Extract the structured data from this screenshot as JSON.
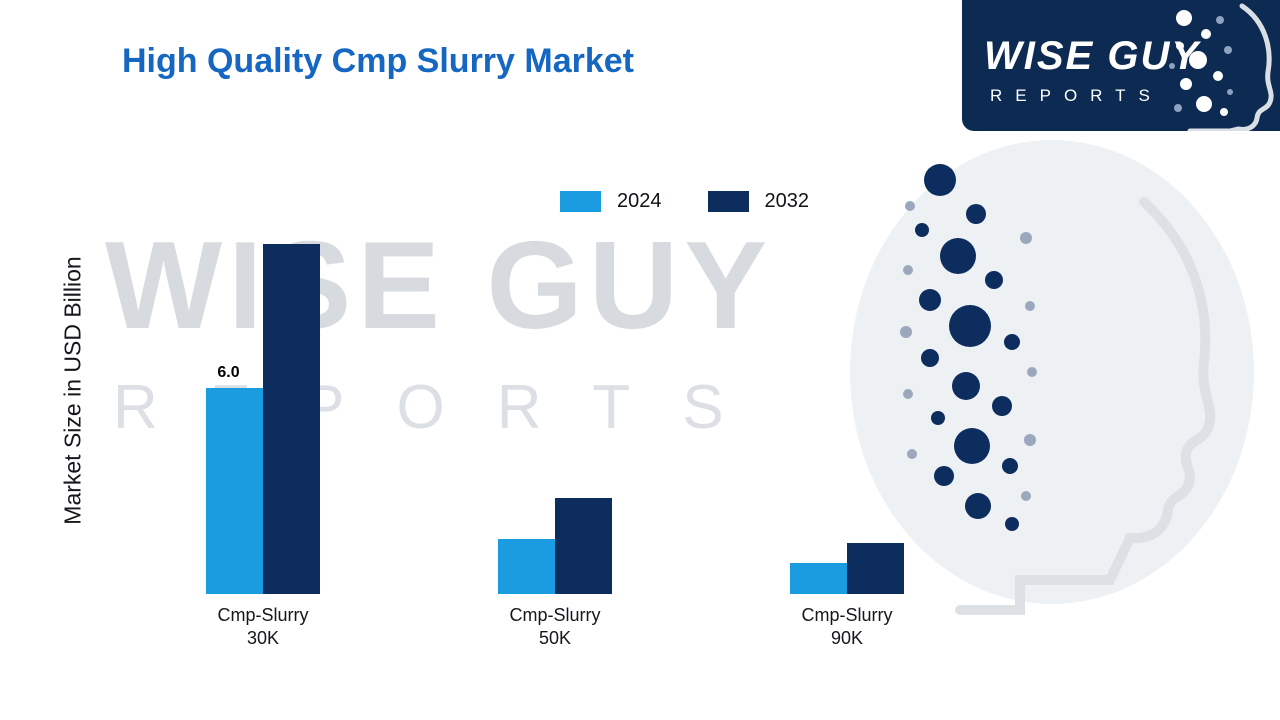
{
  "page": {
    "title": "High Quality Cmp Slurry Market"
  },
  "logo": {
    "brand_top": "WISE GUY",
    "brand_bottom": "REPORTS"
  },
  "watermark": {
    "line1": "WISE GUY",
    "line2": "REPORTS"
  },
  "colors": {
    "title_blue": "#1567c2",
    "bar_2024": "#1b9ce0",
    "bar_2032": "#0d2d5e",
    "logo_background": "#0d2b52",
    "watermark_gray": "#d7dbe0"
  },
  "chart_data": {
    "type": "bar",
    "title": "High Quality Cmp Slurry Market",
    "xlabel": "",
    "ylabel": "Market Size in USD Billion",
    "ylim": [
      0,
      10.5
    ],
    "grid": false,
    "legend_position": "top-center",
    "categories": [
      "Cmp-Slurry 30K",
      "Cmp-Slurry 50K",
      "Cmp-Slurry 90K"
    ],
    "category_label_lines": [
      [
        "Cmp-Slurry",
        "30K"
      ],
      [
        "Cmp-Slurry",
        "50K"
      ],
      [
        "Cmp-Slurry",
        "90K"
      ]
    ],
    "series": [
      {
        "name": "2024",
        "color": "#1b9ce0",
        "values": [
          6.0,
          1.6,
          0.9
        ],
        "value_labels": [
          "6.0",
          "",
          ""
        ]
      },
      {
        "name": "2032",
        "color": "#0d2d5e",
        "values": [
          10.2,
          2.8,
          1.5
        ],
        "value_labels": [
          "",
          "",
          ""
        ]
      }
    ]
  }
}
